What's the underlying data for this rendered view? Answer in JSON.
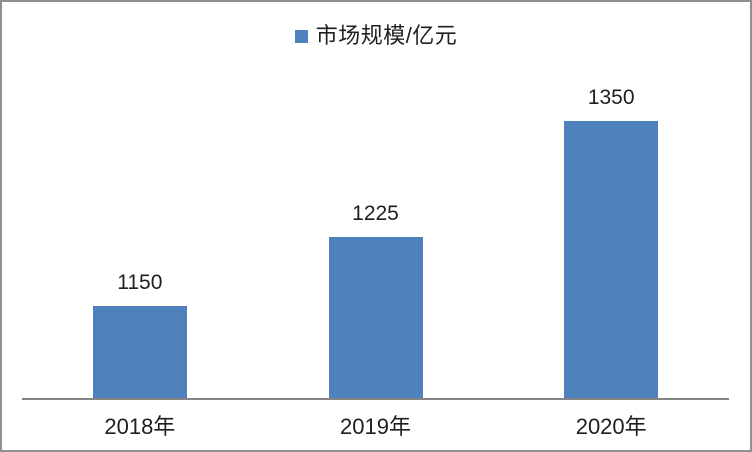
{
  "chart_data": {
    "type": "bar",
    "title": "",
    "legend": "市场规模/亿元",
    "legend_position": "top",
    "categories": [
      "2018年",
      "2019年",
      "2020年"
    ],
    "series": [
      {
        "name": "市场规模/亿元",
        "values": [
          1150,
          1225,
          1350
        ]
      }
    ],
    "data_labels": [
      "1150",
      "1225",
      "1350"
    ],
    "ylim": [
      1050,
      1400
    ],
    "grid": false,
    "bar_color": "#4f81bd",
    "axis_line_color": "#848484",
    "frame_color": "#8f8f8f",
    "text_color": "#1f1f1f",
    "xlabel": "",
    "ylabel": ""
  }
}
